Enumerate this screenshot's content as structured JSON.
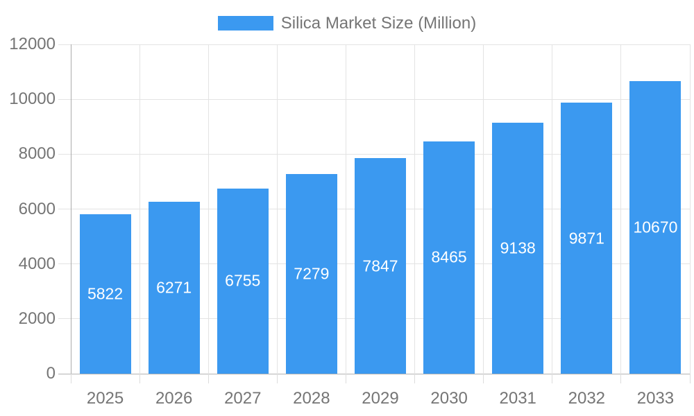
{
  "legend": {
    "label": "Silica Market Size (Million)"
  },
  "colors": {
    "bar": "#3B99F0",
    "axis_text": "#757575",
    "bar_label_text": "#FFFFFF"
  },
  "chart_data": {
    "type": "bar",
    "title": "Silica Market Size (Million)",
    "series_name": "Silica Market Size (Million)",
    "categories": [
      "2025",
      "2026",
      "2027",
      "2028",
      "2029",
      "2030",
      "2031",
      "2032",
      "2033"
    ],
    "values": [
      5822,
      6271,
      6755,
      7279,
      7847,
      8465,
      9138,
      9871,
      10670
    ],
    "bar_value_labels": [
      "5822",
      "6271",
      "6755",
      "7279",
      "7847",
      "8465",
      "9138",
      "9871",
      "10670"
    ],
    "xlabel": "",
    "ylabel": "",
    "ylim": [
      0,
      12000
    ],
    "y_ticks": [
      0,
      2000,
      4000,
      6000,
      8000,
      10000,
      12000
    ],
    "grid": "horizontal and vertical gridlines on",
    "legend_position": "top-center",
    "value_label_position": "inside-center"
  }
}
